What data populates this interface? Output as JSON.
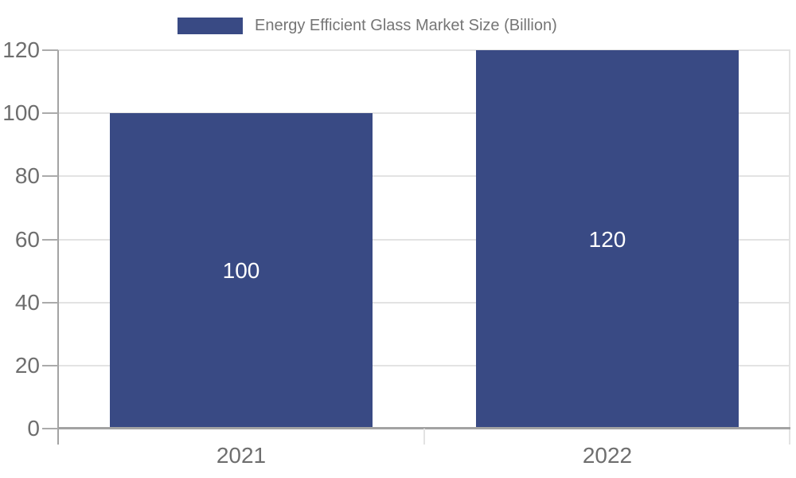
{
  "chart_data": {
    "type": "bar",
    "categories": [
      "2021",
      "2022"
    ],
    "series": [
      {
        "name": "Energy Efficient Glass Market Size (Billion)",
        "values": [
          100,
          120
        ]
      }
    ],
    "data_labels_visible": true,
    "xlabel": "",
    "ylabel": "",
    "ylim": [
      0,
      120
    ],
    "yticks": [
      0,
      20,
      40,
      60,
      80,
      100,
      120
    ],
    "grid": "horizontal",
    "legend": {
      "position": "top",
      "marker": "rectangle"
    },
    "colors": {
      "bar": "#394A84",
      "grid": "#E3E3E3",
      "axis": "#A3A3A3",
      "tick": "#ABABAB",
      "axis_label_text": "#6E6E6E",
      "legend_text": "#757575",
      "data_label_text": "#FFFFFF",
      "background": "#FFFFFF"
    }
  }
}
